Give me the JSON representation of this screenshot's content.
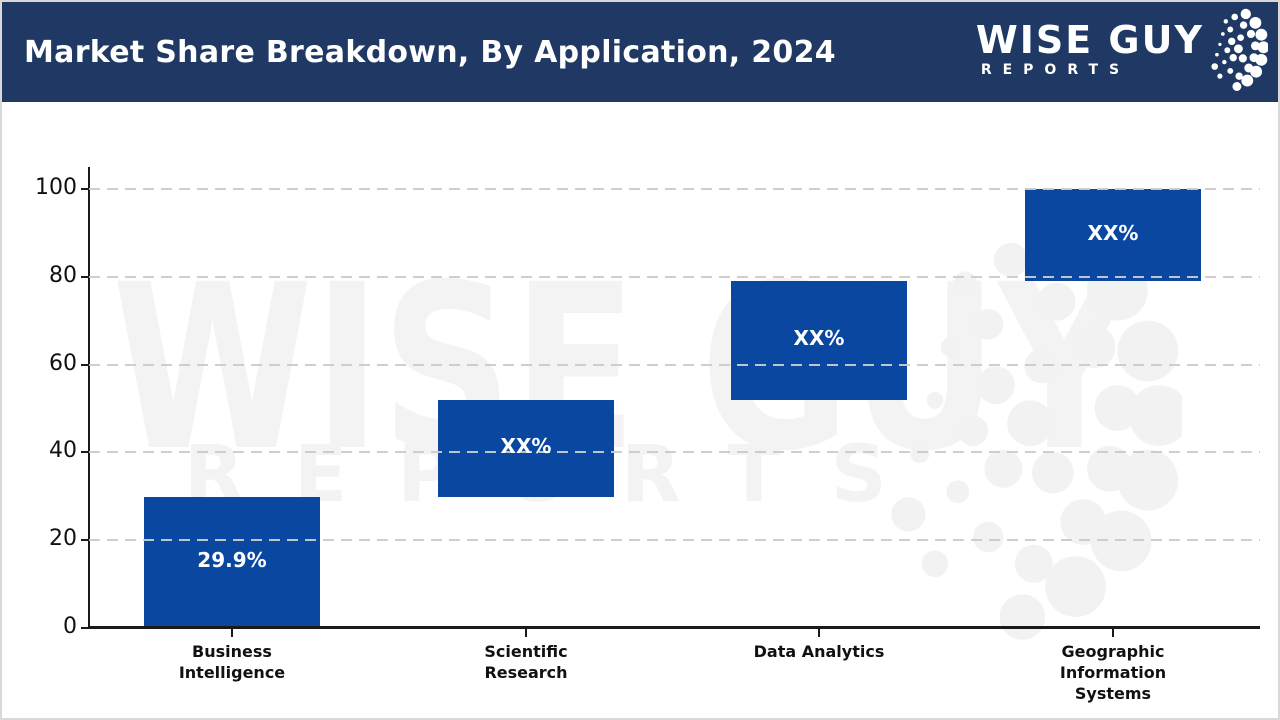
{
  "header": {
    "title": "Market Share Breakdown, By Application, 2024",
    "bg_color": "#1f3864",
    "logo": {
      "line1": "WISE GUY",
      "line2": "REPORTS"
    }
  },
  "watermark": {
    "line1": "WISE GUY",
    "line2": "REPORTS"
  },
  "chart_data": {
    "type": "bar",
    "subtype": "waterfall",
    "title": "Market Share Breakdown, By Application, 2024",
    "categories": [
      "Business\nIntelligence",
      "Scientific\nResearch",
      "Data Analytics",
      "Geographic\nInformation\nSystems"
    ],
    "bars": [
      {
        "category": "Business\nIntelligence",
        "start": 0,
        "end": 29.9,
        "label": "29.9%"
      },
      {
        "category": "Scientific\nResearch",
        "start": 29.9,
        "end": 52,
        "label": "XX%"
      },
      {
        "category": "Data Analytics",
        "start": 52,
        "end": 79,
        "label": "XX%"
      },
      {
        "category": "Geographic\nInformation\nSystems",
        "start": 79,
        "end": 100,
        "label": "XX%"
      }
    ],
    "yticks": [
      0,
      20,
      40,
      60,
      80,
      100
    ],
    "ylim": [
      0,
      105
    ],
    "xlabel": "",
    "ylabel": "",
    "grid": "horizontal-dashed-over-bars",
    "legend": "none",
    "bar_color": "#0a47a1",
    "bar_label_color": "#ffffff",
    "axis_color": "#1a1a1a",
    "gridline_color": "#cbcbcb"
  }
}
